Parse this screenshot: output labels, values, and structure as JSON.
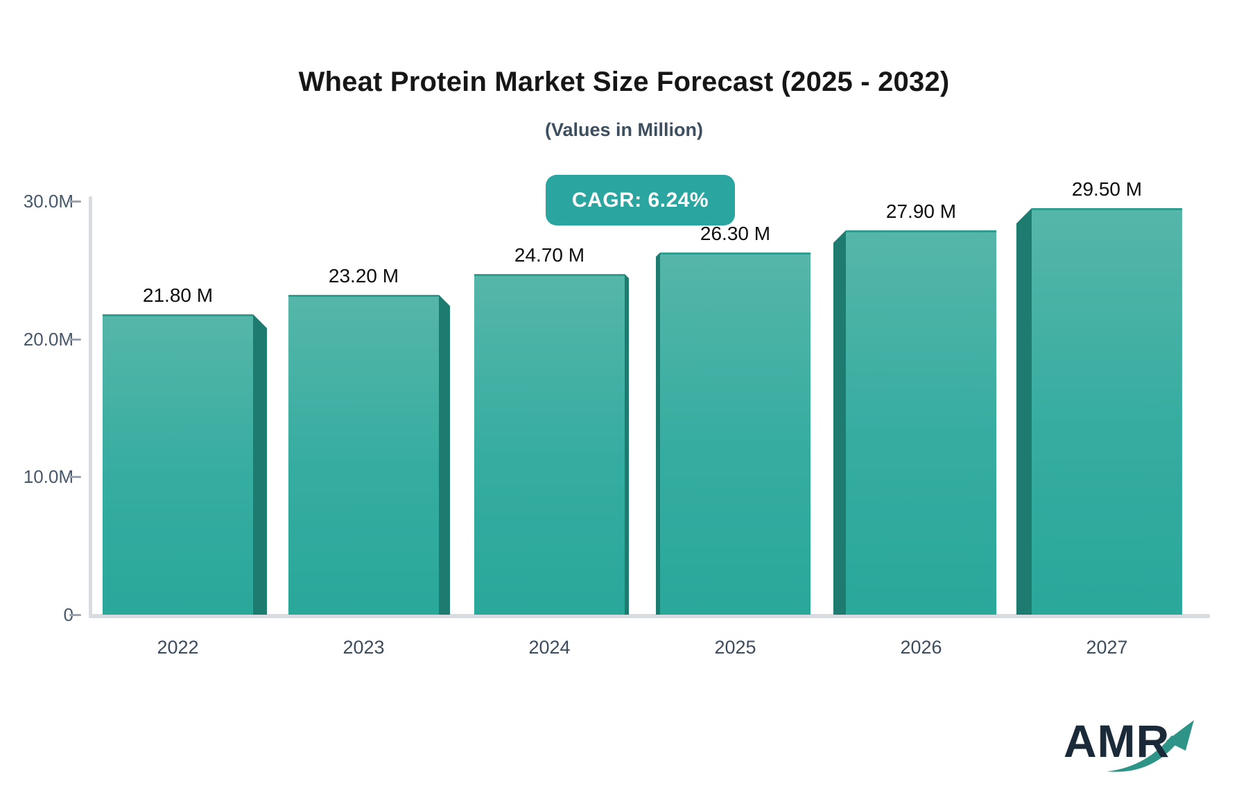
{
  "title": "Wheat Protein Market Size Forecast (2025 - 2032)",
  "subtitle": "(Values in Million)",
  "cagr_badge_label": "CAGR: 6.24%",
  "logo": {
    "text": "AMR"
  },
  "colors": {
    "title": "#161616",
    "subtitle": "#3d4e5e",
    "badge": "#2ba5a0",
    "axis": "#d8dbdf",
    "tick_dash": "#9aa3af",
    "y_tick_text": "#47586a",
    "x_tick_text": "#3d4c5c",
    "value_text": "#0e0e0e",
    "bar_gradient_top": "#55b6a9",
    "bar_gradient_mid": "#35aca0",
    "bar_gradient_bottom": "#2aa89a",
    "bar_top_edge": "#2e9c8f",
    "bar_side": "#1e7b70",
    "logo_text": "#1b2a38",
    "logo_arrow": "#2f9488"
  },
  "chart_data": {
    "type": "bar",
    "categories": [
      "2022",
      "2023",
      "2024",
      "2025",
      "2026",
      "2027"
    ],
    "values": [
      21.8,
      23.2,
      24.7,
      26.3,
      27.9,
      29.5
    ],
    "value_labels": [
      "21.80 M",
      "23.20 M",
      "24.70 M",
      "26.30 M",
      "27.90 M",
      "29.50 M"
    ],
    "unit": "Million",
    "title": "Wheat Protein Market Size Forecast (2025 - 2032)",
    "subtitle": "(Values in Million)",
    "annotation": "CAGR: 6.24%",
    "xlabel": "",
    "ylabel": "",
    "ylim": [
      0,
      30
    ],
    "y_ticks": [
      {
        "value": 30,
        "label": "30.0M"
      },
      {
        "value": 20,
        "label": "20.0M"
      },
      {
        "value": 10,
        "label": "10.0M"
      },
      {
        "value": 0,
        "label": "0"
      }
    ],
    "grid": false,
    "legend": false,
    "bar_style": "3d-perspective, teal gradient, central vanishing point"
  }
}
